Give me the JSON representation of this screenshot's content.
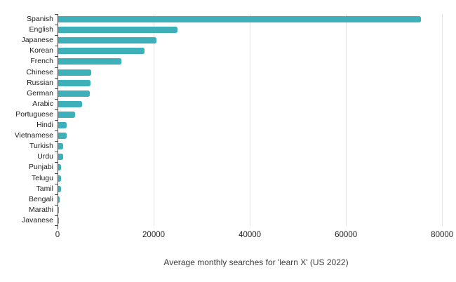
{
  "chart_data": {
    "type": "bar",
    "orientation": "horizontal",
    "title": "",
    "xlabel": "Average monthly searches for 'learn X' (US 2022)",
    "ylabel": "",
    "categories": [
      "Spanish",
      "English",
      "Japanese",
      "Korean",
      "French",
      "Chinese",
      "Russian",
      "German",
      "Arabic",
      "Portuguese",
      "Hindi",
      "Vietnamese",
      "Turkish",
      "Urdu",
      "Punjabi",
      "Telugu",
      "Tamil",
      "Bengali",
      "Marathi",
      "Javanese"
    ],
    "values": [
      75500,
      24800,
      20500,
      17900,
      13100,
      6800,
      6650,
      6600,
      4900,
      3500,
      1750,
      1700,
      1050,
      1000,
      640,
      620,
      600,
      350,
      150,
      40
    ],
    "x_ticks": [
      0,
      20000,
      40000,
      60000,
      80000
    ],
    "xlim": [
      0,
      82600
    ],
    "grid": "vertical-only",
    "legend": "none",
    "colors": {
      "bar": "#3EB0BA",
      "gridline": "#e3e3e3",
      "axis_line": "#424242",
      "tick_mark": "#4a4a4a",
      "tick_label": "#212121",
      "axis_title": "#3c3c3c",
      "background": "#ffffff"
    }
  }
}
